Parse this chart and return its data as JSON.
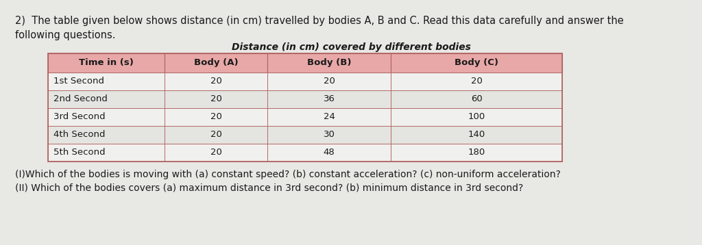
{
  "background_color": "#e8e8e4",
  "title_text": "2)  The table given below shows distance (in cm) travelled by bodies A, B and C. Read this data carefully and answer the",
  "title_line2": "following questions.",
  "table_title": "Distance (in cm) covered by different bodies",
  "col_headers": [
    "Time in (s)",
    "Body (A)",
    "Body (B)",
    "Body (C)"
  ],
  "rows": [
    [
      "1st Second",
      "20",
      "20",
      "20"
    ],
    [
      "2nd Second",
      "20",
      "36",
      "60"
    ],
    [
      "3rd Second",
      "20",
      "24",
      "100"
    ],
    [
      "4th Second",
      "20",
      "30",
      "140"
    ],
    [
      "5th Second",
      "20",
      "48",
      "180"
    ]
  ],
  "footer_line1": "(I)Which of the bodies is moving with (a) constant speed? (b) constant acceleration? (c) non-uniform acceleration?",
  "footer_line2": "(II) Which of the bodies covers (a) maximum distance in 3rd second? (b) minimum distance in 3rd second?",
  "header_bg": "#e8a8a8",
  "header_border": "#b06060",
  "row_bg_light": "#f0f0ee",
  "row_bg_dark": "#e4e4e0",
  "table_border": "#b06060",
  "text_color": "#1a1a1a",
  "font_size_main": 10.5,
  "font_size_table_header": 9.5,
  "font_size_table_data": 9.5,
  "font_size_footer": 10,
  "table_title_fontsize": 10
}
